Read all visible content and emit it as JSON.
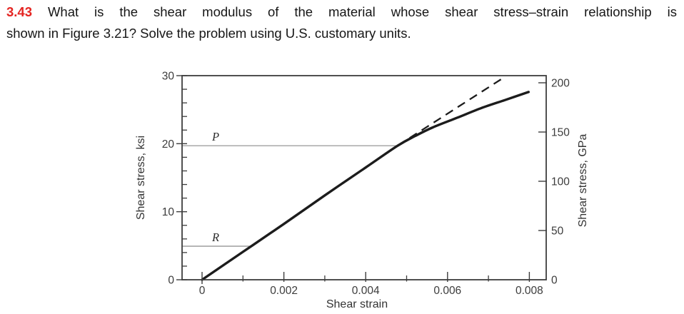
{
  "problem": {
    "number": "3.43",
    "line1": "What is the shear modulus of the material whose shear stress–strain relationship is",
    "line2": "shown in Figure 3.21? Solve the problem using U.S. customary units."
  },
  "colors": {
    "problem_number": "#e42522",
    "text": "#161616",
    "axis": "#3d3d3d",
    "curve": "#1c1c1c",
    "ref_line": "#8b8b8b",
    "tick_label": "#3c3c3c",
    "axis_title": "#333333",
    "annotation_label": "#2e2e2e"
  },
  "chart_data": {
    "type": "line",
    "xlabel": "Shear strain",
    "ylabel_left": "Shear stress, ksi",
    "ylabel_right": "Shear stress, GPa",
    "xlim": [
      -0.00049,
      0.00841
    ],
    "ylim_left": [
      0,
      30
    ],
    "ylim_right": [
      0,
      207
    ],
    "grid": "off",
    "legend": "none",
    "x_major_ticks": [
      0,
      0.002,
      0.004,
      0.006,
      0.008
    ],
    "x_major_labels": [
      "0",
      "0.002",
      "0.004",
      "0.006",
      "0.008"
    ],
    "x_minor_ticks": [
      0.001,
      0.003,
      0.005,
      0.007
    ],
    "y_left_major_ticks": [
      0,
      10,
      20,
      30
    ],
    "y_left_major_labels": [
      "0",
      "10",
      "20",
      "30"
    ],
    "y_left_minor_ticks": [
      2,
      4,
      6,
      8,
      12,
      14,
      16,
      18,
      22,
      24,
      26,
      28
    ],
    "y_right_major_ticks": [
      50,
      100,
      150,
      200
    ],
    "y_right_major_labels": [
      "50",
      "100",
      "150",
      "200"
    ],
    "y_right_zero_label": "0",
    "series": [
      {
        "name": "shear stress-strain curve",
        "style": "solid",
        "points": [
          [
            0,
            0
          ],
          [
            0.001,
            4.1
          ],
          [
            0.002,
            8.2
          ],
          [
            0.003,
            12.4
          ],
          [
            0.004,
            16.5
          ],
          [
            0.00478,
            19.7
          ],
          [
            0.0052,
            21.1
          ],
          [
            0.00564,
            22.4
          ],
          [
            0.00623,
            23.8
          ],
          [
            0.00681,
            25.2
          ],
          [
            0.0074,
            26.4
          ],
          [
            0.00798,
            27.6
          ]
        ]
      },
      {
        "name": "linear extrapolation",
        "style": "dashed",
        "points": [
          [
            0.00478,
            19.7
          ],
          [
            0.00742,
            29.9
          ]
        ]
      }
    ],
    "annotations": [
      {
        "label": "P",
        "y": 19.7,
        "x_to": 0.00478
      },
      {
        "label": "R",
        "y": 4.93,
        "x_to": 0.0012
      }
    ]
  }
}
